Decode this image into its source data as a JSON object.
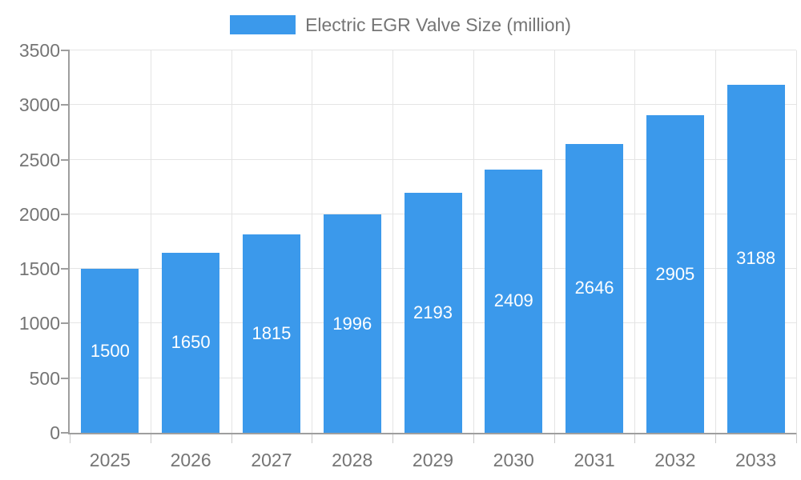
{
  "chart_data": {
    "type": "bar",
    "title": "Electric EGR Valve Size (million)",
    "categories": [
      "2025",
      "2026",
      "2027",
      "2028",
      "2029",
      "2030",
      "2031",
      "2032",
      "2033"
    ],
    "values": [
      1500,
      1650,
      1815,
      1996,
      2193,
      2409,
      2646,
      2905,
      3188
    ],
    "xlabel": "",
    "ylabel": "",
    "ylim": [
      0,
      3500
    ],
    "ytick_step": 500,
    "yticks": [
      "0",
      "500",
      "1000",
      "1500",
      "2000",
      "2500",
      "3000",
      "3500"
    ],
    "grid": true,
    "legend_position": "top",
    "bar_value_label_position": "inside-center",
    "colors": {
      "bar": "#3B99EB",
      "axis": "#9E9E9E",
      "grid": "#E4E4E4",
      "x_tick": "#C9C9C9",
      "text": "#757575",
      "bar_label": "#FFFFFF"
    }
  }
}
